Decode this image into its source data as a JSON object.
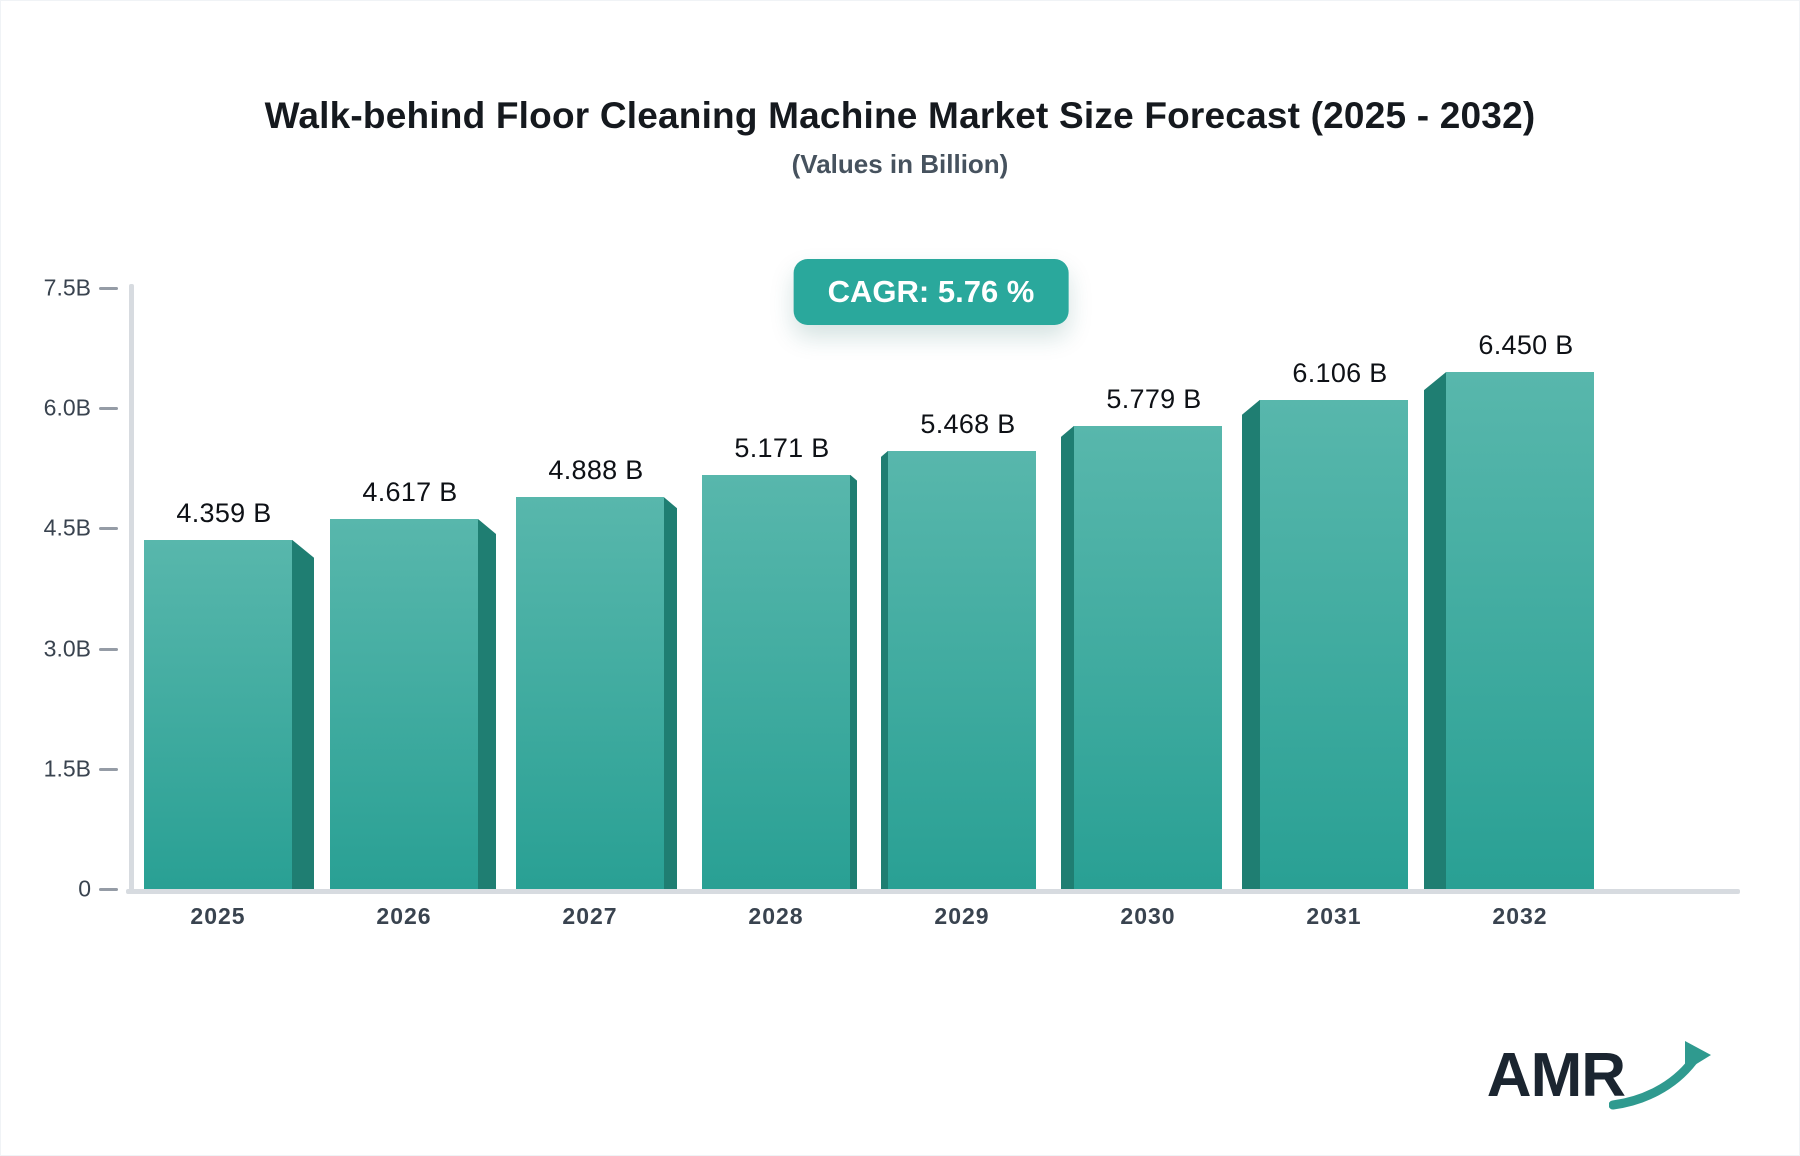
{
  "title": "Walk-behind Floor Cleaning Machine Market Size Forecast (2025 - 2032)",
  "subtitle": "(Values in Billion)",
  "badge": {
    "label": "CAGR: 5.76 %"
  },
  "logo": {
    "text": "AMR",
    "arrow_icon": "trend-up-arrow"
  },
  "colors": {
    "bar_top": "#58b7ac",
    "bar_bottom": "#29a094",
    "bar_side": "#1f7e72",
    "badge_bg": "#2aa89c",
    "badge_text": "#ffffff",
    "axis_line": "#d7dbe0",
    "tick": "#959ca6",
    "title_text": "#15191e",
    "subtitle_text": "#46525e",
    "axis_label": "#39434f",
    "value_label": "#0e1116",
    "logo_text": "#1b2530",
    "logo_arrow": "#2f9a8f"
  },
  "chart_data": {
    "type": "bar",
    "title": "Walk-behind Floor Cleaning Machine Market Size Forecast (2025 - 2032)",
    "subtitle": "(Values in Billion)",
    "xlabel": "",
    "ylabel": "",
    "categories": [
      "2025",
      "2026",
      "2027",
      "2028",
      "2029",
      "2030",
      "2031",
      "2032"
    ],
    "values": [
      4.359,
      4.617,
      4.888,
      5.171,
      5.468,
      5.779,
      6.106,
      6.45
    ],
    "value_labels": [
      "4.359 B",
      "4.617 B",
      "4.888 B",
      "5.171 B",
      "5.468 B",
      "5.779 B",
      "6.106 B",
      "6.450 B"
    ],
    "ylim": [
      0,
      7.5
    ],
    "y_ticks": [
      0,
      1.5,
      3.0,
      4.5,
      6.0,
      7.5
    ],
    "y_tick_labels": [
      "0",
      "1.5B",
      "3.0B",
      "4.5B",
      "6.0B",
      "7.5B"
    ],
    "grid": false,
    "legend": "none",
    "annotations": [
      "CAGR: 5.76 %"
    ],
    "bar_style": "3d-teal-gradient"
  }
}
